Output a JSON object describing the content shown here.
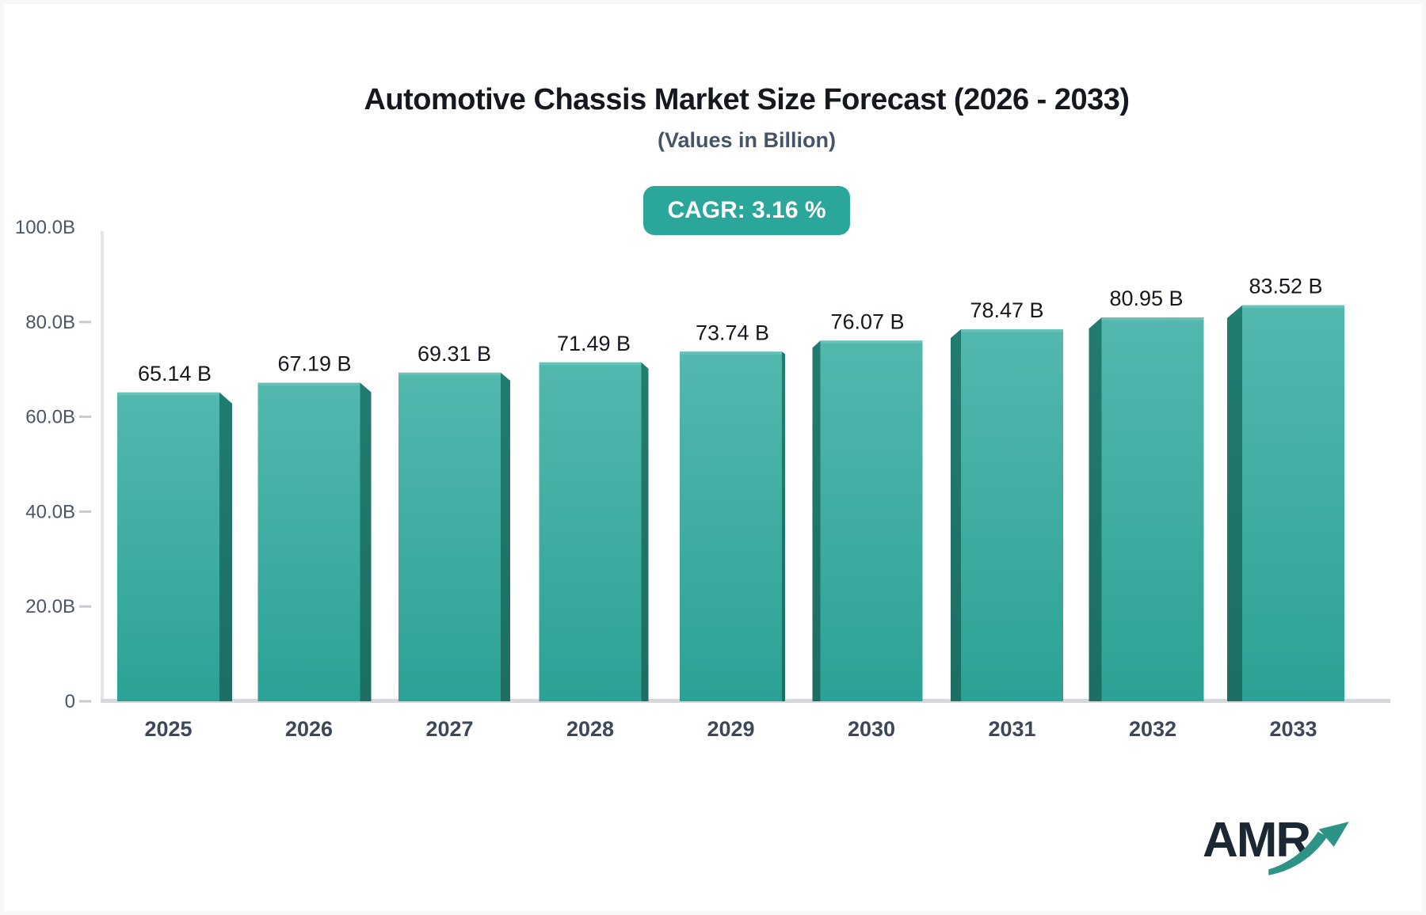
{
  "header": {
    "title": "Automotive Chassis Market Size Forecast (2026 - 2033)",
    "subtitle": "(Values in Billion)",
    "cagr_badge": "CAGR: 3.16 %"
  },
  "chart_data": {
    "type": "bar",
    "title": "Automotive Chassis Market Size Forecast (2026 - 2033)",
    "subtitle": "(Values in Billion)",
    "cagr": "3.16 %",
    "categories": [
      "2025",
      "2026",
      "2027",
      "2028",
      "2029",
      "2030",
      "2031",
      "2032",
      "2033"
    ],
    "values": [
      65.14,
      67.19,
      69.31,
      71.49,
      73.74,
      76.07,
      78.47,
      80.95,
      83.52
    ],
    "bar_labels": [
      "65.14 B",
      "67.19 B",
      "69.31 B",
      "71.49 B",
      "73.74 B",
      "76.07 B",
      "78.47 B",
      "80.95 B",
      "83.52 B"
    ],
    "unit": "B",
    "xlabel": "",
    "ylabel": "",
    "ylim": [
      0,
      100
    ],
    "yticks": [
      100,
      80,
      60,
      40,
      20,
      0
    ],
    "ytick_labels": [
      "100.0B",
      "80.0B",
      "60.0B",
      "40.0B",
      "20.0B",
      "0"
    ],
    "grid": false,
    "legend_position": "none",
    "colors": {
      "bar_face_top": "#53b8ad",
      "bar_face_bottom": "#2ba295",
      "bar_top_highlight": "#66c2b7",
      "bar_side_top": "#217c70",
      "bar_side_bottom": "#1d6e63",
      "badge_bg": "#2aa69a",
      "axis_line": "#e2e6ea",
      "baseline": "#d4d8dd",
      "tick": "#c6cbd2"
    }
  },
  "brand": {
    "name": "AMR"
  }
}
